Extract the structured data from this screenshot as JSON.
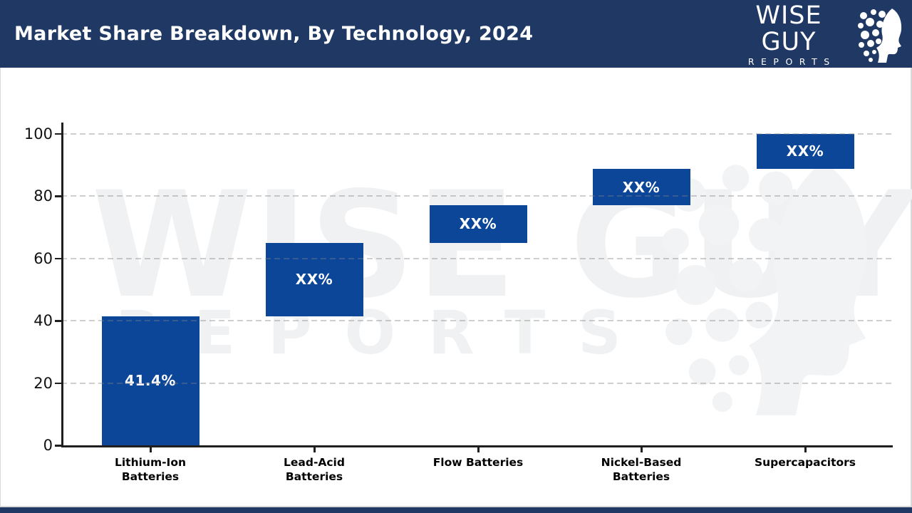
{
  "header": {
    "title": "Market Share Breakdown, By Technology, 2024",
    "logo": {
      "line1": "WISE GUY",
      "line2": "REPORTS"
    }
  },
  "watermark": {
    "line1": "WISE GUY",
    "line2": "REPORTS"
  },
  "colors": {
    "header_bg": "#1f3864",
    "footer_bg": "#1f3864",
    "bar": "#0c4699",
    "bar_label": "#ffffff",
    "axis": "#1f1f1f",
    "grid": "#d8d8d8",
    "watermark": "#f0f1f3"
  },
  "chart_data": {
    "type": "bar",
    "subtype": "waterfall",
    "title": "Market Share Breakdown, By Technology, 2024",
    "ylabel": "",
    "xlabel": "",
    "ylim": [
      0,
      105
    ],
    "yticks": [
      0,
      20,
      40,
      60,
      80,
      100
    ],
    "grid": "horizontal-dashed",
    "legend": "none",
    "categories": [
      "Lithium-Ion Batteries",
      "Lead-Acid Batteries",
      "Flow Batteries",
      "Nickel-Based Batteries",
      "Supercapacitors"
    ],
    "segments": [
      {
        "category_lines": [
          "Lithium-Ion",
          "Batteries"
        ],
        "base": 0,
        "end": 41.4,
        "value_label": "41.4%"
      },
      {
        "category_lines": [
          "Lead-Acid",
          "Batteries"
        ],
        "base": 41.4,
        "end": 65.0,
        "value_label": "XX%"
      },
      {
        "category_lines": [
          "Flow Batteries"
        ],
        "base": 65.0,
        "end": 77.0,
        "value_label": "XX%"
      },
      {
        "category_lines": [
          "Nickel-Based",
          "Batteries"
        ],
        "base": 77.0,
        "end": 88.6,
        "value_label": "XX%"
      },
      {
        "category_lines": [
          "Supercapacitors"
        ],
        "base": 88.6,
        "end": 100.0,
        "value_label": "XX%"
      }
    ]
  }
}
